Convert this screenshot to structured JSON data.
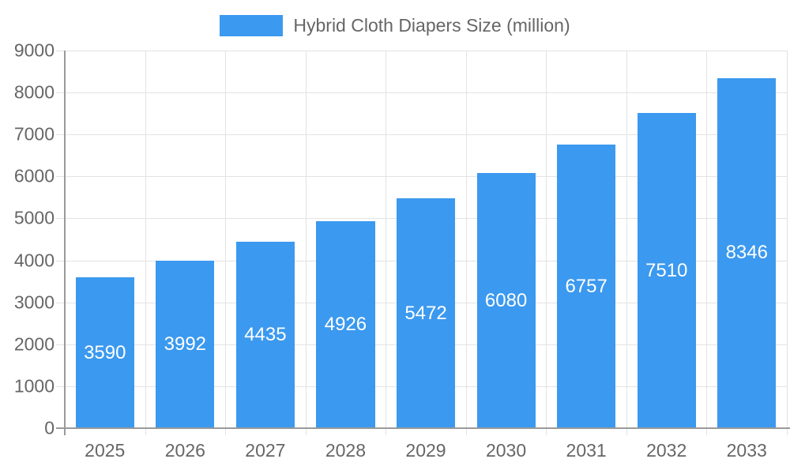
{
  "legend": {
    "label": "Hybrid Cloth Diapers Size (million)"
  },
  "colors": {
    "bar": "#3B99EF",
    "grid": "#E3E3E3",
    "axis": "#9A9A9A",
    "tick_text": "#666666",
    "bar_label": "#FFFFFF",
    "bg": "#FFFFFF"
  },
  "chart_data": {
    "type": "bar",
    "title": "Hybrid Cloth Diapers Size (million)",
    "categories": [
      "2025",
      "2026",
      "2027",
      "2028",
      "2029",
      "2030",
      "2031",
      "2032",
      "2033"
    ],
    "values": [
      3590,
      3992,
      4435,
      4926,
      5472,
      6080,
      6757,
      7510,
      8346
    ],
    "xlabel": "",
    "ylabel": "",
    "ylim": [
      0,
      9000
    ],
    "ytick_step": 1000,
    "yticks": [
      0,
      1000,
      2000,
      3000,
      4000,
      5000,
      6000,
      7000,
      8000,
      9000
    ],
    "grid": true,
    "legend_position": "top",
    "value_labels": "inside-center"
  }
}
